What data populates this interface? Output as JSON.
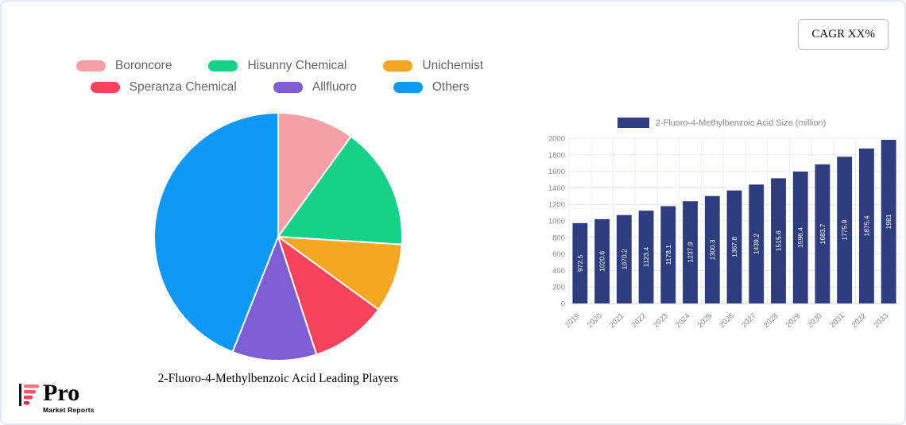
{
  "cagr_badge": {
    "label": "CAGR XX%"
  },
  "logo": {
    "brand": "Pro",
    "sub": "Market Reports"
  },
  "chart_data": [
    {
      "type": "pie",
      "title": "2-Fluoro-4-Methylbenzoic Acid Leading Players",
      "labels": [
        "Boroncore",
        "Hisunny Chemical",
        "Unichemist",
        "Speranza Chemical",
        "Allfluoro",
        "Others"
      ],
      "values": [
        10,
        16,
        9,
        10,
        11,
        44
      ],
      "colors": [
        "#f4a0a6",
        "#18d189",
        "#f5a623",
        "#f8435c",
        "#7d5fd3",
        "#0d99f5"
      ],
      "start_angle_deg": 0,
      "direction": "clockwise",
      "legend_position": "top",
      "legend_rows": [
        3,
        3
      ]
    },
    {
      "type": "bar",
      "legend": "2-Fluoro-4-Methylbenzoic Acid Size (million)",
      "categories": [
        "2019",
        "2020",
        "2021",
        "2022",
        "2023",
        "2024",
        "2025",
        "2026",
        "2027",
        "2028",
        "2029",
        "2030",
        "2031",
        "2032",
        "2033"
      ],
      "values": [
        972.5,
        1020.6,
        1070.2,
        1123.4,
        1178.1,
        1237.9,
        1300.3,
        1367.8,
        1439.2,
        1515.6,
        1596.4,
        1683.7,
        1775.9,
        1875.4,
        1981.0
      ],
      "bar_color": "#2e3d7d",
      "ylim": [
        0,
        2000
      ],
      "ytick_step": 200,
      "grid": true,
      "value_labels": "vertical-inside",
      "legend_position": "top"
    }
  ],
  "style_colors": {
    "grid": "#eaeaf4",
    "vgrid": "#eef0f7",
    "axis": "#d5d5e0",
    "tick_text": "#8a8a8a",
    "value_label_text": "#ffffff"
  }
}
